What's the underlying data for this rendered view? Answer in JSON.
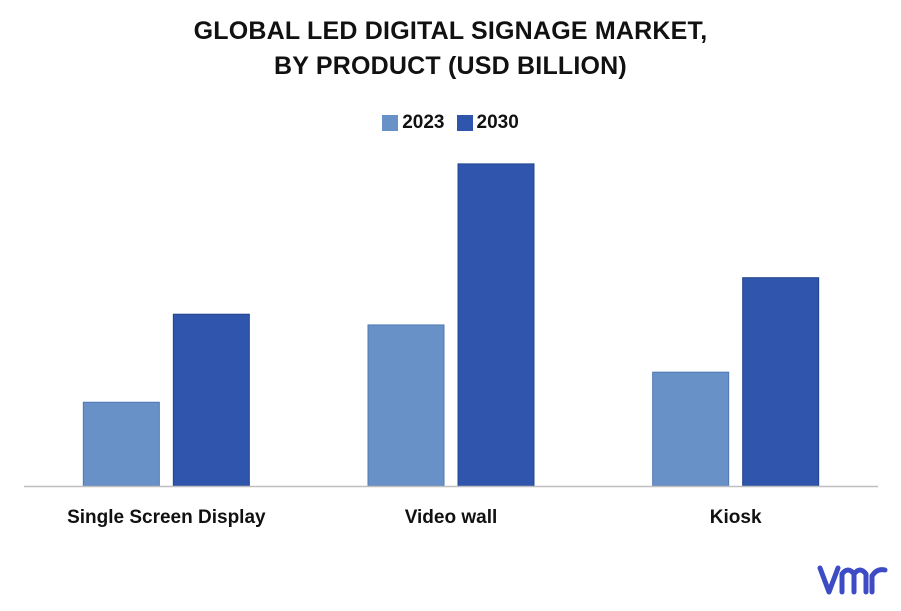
{
  "chart_data": {
    "type": "bar",
    "title_lines": [
      "GLOBAL LED DIGITAL SIGNAGE MARKET,",
      "BY PRODUCT (USD BILLION)"
    ],
    "categories": [
      "Single Screen Display",
      "Video wall",
      "Kiosk"
    ],
    "series": [
      {
        "name": "2023",
        "values": [
          3.9,
          7.5,
          5.3
        ],
        "color": "#6891c7"
      },
      {
        "name": "2030",
        "values": [
          8.0,
          15.0,
          9.7
        ],
        "color": "#2f55ad"
      }
    ],
    "ylim": [
      0,
      15.6
    ],
    "grid": false,
    "legend_position": "top-center",
    "axis_line_color": "#bfbfbf"
  },
  "brand": {
    "logo_icon": "vmr-logo-icon",
    "logo_color": "#3d4bc4"
  }
}
